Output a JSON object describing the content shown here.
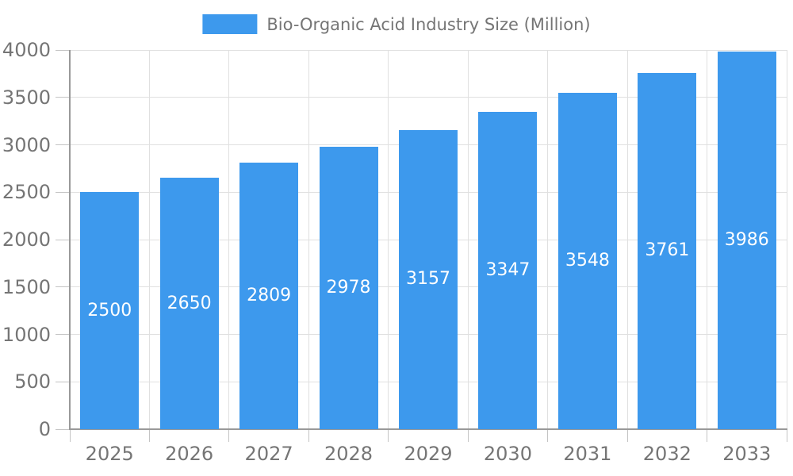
{
  "colors": {
    "bar": "#3D99ED",
    "value_label": "#FFFFFF",
    "axis_line": "#999999",
    "tick": "#C4C4C4",
    "gridline": "#E0E0E0",
    "axis_label": "#757575",
    "background": "#FFFFFF"
  },
  "chart_data": {
    "type": "bar",
    "title": "Bio-Organic Acid Industry Size (Million)",
    "categories": [
      "2025",
      "2026",
      "2027",
      "2028",
      "2029",
      "2030",
      "2031",
      "2032",
      "2033"
    ],
    "values": [
      2500,
      2650,
      2809,
      2978,
      3157,
      3347,
      3548,
      3761,
      3986
    ],
    "value_labels": [
      "2500",
      "2650",
      "2809",
      "2978",
      "3157",
      "3347",
      "3548",
      "3761",
      "3986"
    ],
    "xlabel": "",
    "ylabel": "",
    "ylim": [
      0,
      4000
    ],
    "yticks": [
      0,
      500,
      1000,
      1500,
      2000,
      2500,
      3000,
      3500,
      4000
    ],
    "grid": true,
    "legend_position": "top-center",
    "value_label_position": "inside-center"
  }
}
